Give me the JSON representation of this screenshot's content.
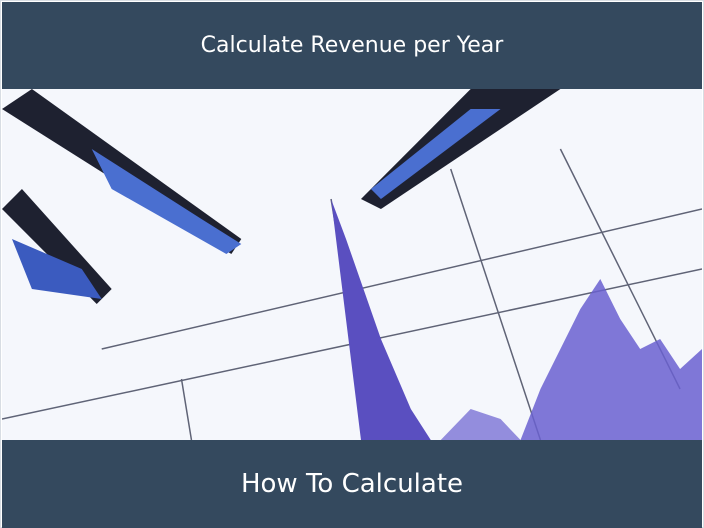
{
  "header": {
    "title": "Calculate Revenue per Year"
  },
  "image": {
    "description_icon": "pens-on-chart-illustration",
    "accent": "#5a4fc0"
  },
  "footer": {
    "caption": "How To Calculate"
  },
  "colors": {
    "band": "#34495e",
    "text": "#ffffff"
  }
}
